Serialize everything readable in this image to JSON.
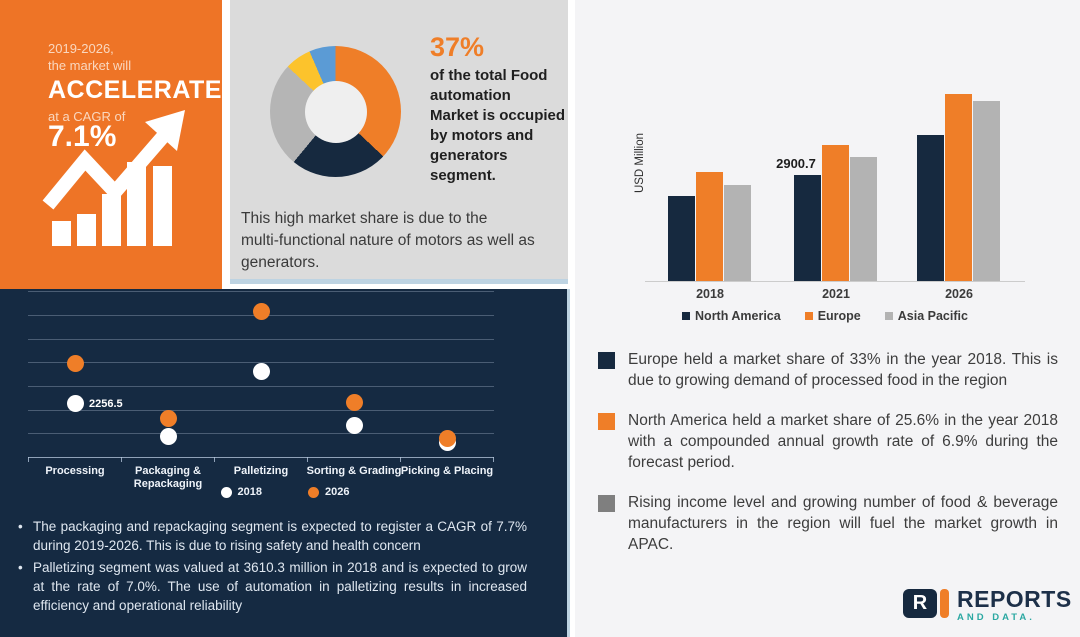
{
  "colors": {
    "orange_panel": "#ee7426",
    "accent_orange": "#ef7e28",
    "navy": "#16293f",
    "navy_panel": "#152a42",
    "panel_gray": "#dbdbdb",
    "right_panel": "#f4f4f6",
    "bar_gray": "#b3b3b3",
    "square_gray": "#7f7f7f",
    "donut_yellow": "#fcc32c",
    "donut_blue": "#5b9bd5",
    "logo_teal": "#2ba8a2"
  },
  "accelerate_panel": {
    "period": "2019-2026,",
    "line2": "the market will",
    "headline": "ACCELERATE",
    "line3": "at a CAGR of",
    "cagr": "7.1%"
  },
  "donut_panel": {
    "stat_value": "37%",
    "stat_lines": [
      "of the total Food",
      "automation",
      "Market is occupied",
      "by motors and",
      "generators",
      "segment."
    ],
    "note_lines": [
      "This high market share is due to the",
      "multi-functional nature of motors as well as",
      "generators."
    ]
  },
  "chart_data": [
    {
      "id": "segment-donut",
      "type": "pie",
      "segments": [
        {
          "name": "motors-and-generators",
          "value": 37,
          "color": "#ef7e28"
        },
        {
          "name": "segment-navy",
          "value": 24,
          "color": "#16293f"
        },
        {
          "name": "segment-gray",
          "value": 26,
          "color": "#b5b5b5"
        },
        {
          "name": "segment-yellow",
          "value": 6.5,
          "color": "#fcc32c"
        },
        {
          "name": "segment-blue",
          "value": 6.5,
          "color": "#5b9bd5"
        }
      ],
      "labeled_value": "37%"
    },
    {
      "id": "regional-bar",
      "type": "bar",
      "categories": [
        "2018",
        "2021",
        "2026"
      ],
      "series": [
        {
          "name": "North America",
          "color": "#16293f",
          "values": [
            2330,
            2900.7,
            4000
          ]
        },
        {
          "name": "Europe",
          "color": "#ef7e28",
          "values": [
            2990,
            3720,
            5120
          ]
        },
        {
          "name": "Asia Pacific",
          "color": "#b3b3b3",
          "values": [
            2630,
            3400,
            4930
          ]
        }
      ],
      "ylabel": "USD Million",
      "ylim": [
        0,
        5500
      ],
      "legend_position": "bottom",
      "data_label": {
        "series": "North America",
        "category": "2021",
        "text": "2900.7"
      }
    },
    {
      "id": "segment-dot-plot",
      "type": "scatter",
      "categories": [
        "Processing",
        "Packaging & Repackaging",
        "Palletizing",
        "Sorting & Grading",
        "Picking & Placing"
      ],
      "series": [
        {
          "name": "2018",
          "color": "#ffffff",
          "values": [
            2256.5,
            850,
            3610.3,
            1350,
            600
          ]
        },
        {
          "name": "2026",
          "color": "#ef7e28",
          "values": [
            3950,
            1630,
            6150,
            2300,
            800
          ]
        }
      ],
      "ylim": [
        0,
        7000
      ],
      "gridline_step": 1000,
      "legend_position": "bottom",
      "data_label": {
        "series": "2018",
        "category": "Processing",
        "text": "2256.5"
      }
    }
  ],
  "dot_panel_bullets": [
    "The packaging and repackaging segment is expected to register a CAGR of 7.7% during 2019-2026. This is due to rising safety and health concern",
    "Palletizing segment was valued at 3610.3 million in 2018 and is expected to grow at the rate of 7.0%. The use of automation in palletizing results in increased efficiency and operational reliability"
  ],
  "region_bullets": [
    {
      "marker_color": "#16293f",
      "text": "Europe held a market share of 33% in the year 2018. This is due to growing demand of processed food in the region"
    },
    {
      "marker_color": "#ef7e28",
      "text": "North America held a market share of 25.6% in the year 2018 with a compounded annual growth rate of 6.9% during the forecast period."
    },
    {
      "marker_color": "#7f7f7f",
      "text": "Rising income level and growing number of food & beverage manufacturers in the region will fuel the market growth in APAC."
    }
  ],
  "logo": {
    "mark": "R",
    "name": "REPORTS",
    "sub": "AND DATA."
  }
}
